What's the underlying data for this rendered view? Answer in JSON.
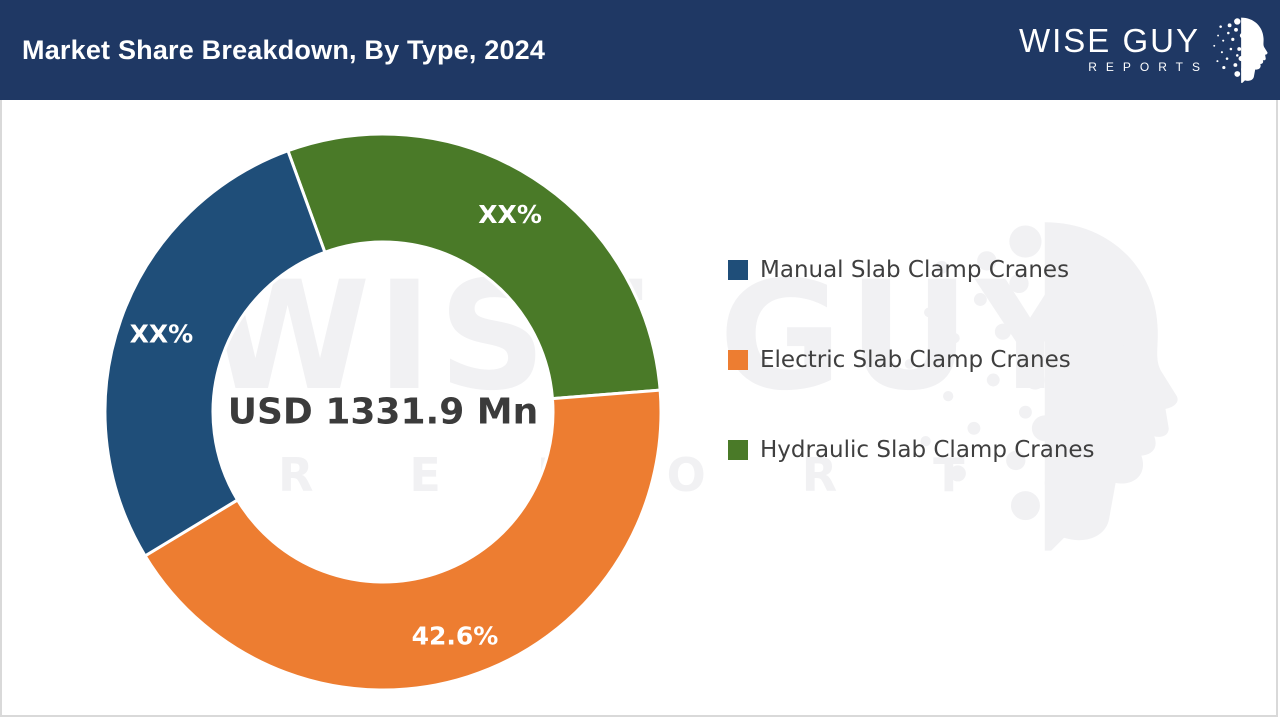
{
  "header": {
    "title": "Market Share Breakdown, By Type, 2024",
    "logo_line1": "WISE GUY",
    "logo_line2": "REPORTS"
  },
  "chart_data": {
    "type": "pie",
    "donut": true,
    "title": "Market Share Breakdown, By Type, 2024",
    "center_label": "USD 1331.9 Mn",
    "start_angle_deg": -20,
    "legend_position": "right",
    "segments": [
      {
        "name": "Hydraulic Slab Clamp Cranes",
        "value_pct": 29.3,
        "display_label": "XX%",
        "color": "#4a7a28"
      },
      {
        "name": "Electric Slab Clamp Cranes",
        "value_pct": 42.6,
        "display_label": "42.6%",
        "color": "#ed7d31"
      },
      {
        "name": "Manual Slab Clamp Cranes",
        "value_pct": 28.1,
        "display_label": "XX%",
        "color": "#1f4e79"
      }
    ]
  },
  "legend": {
    "items": [
      {
        "label": "Manual Slab Clamp Cranes",
        "color": "#1f4e79"
      },
      {
        "label": "Electric Slab Clamp Cranes",
        "color": "#ed7d31"
      },
      {
        "label": "Hydraulic Slab Clamp Cranes",
        "color": "#4a7a28"
      }
    ]
  },
  "watermark": {
    "line1": "WISE GUY",
    "line2": "R E P O R T S"
  },
  "colors": {
    "header_bg": "#1f3864",
    "center_text": "#3b3b3b",
    "legend_text": "#3f3f3f",
    "watermark": "#f1f1f3",
    "border": "#d9d9d9"
  }
}
